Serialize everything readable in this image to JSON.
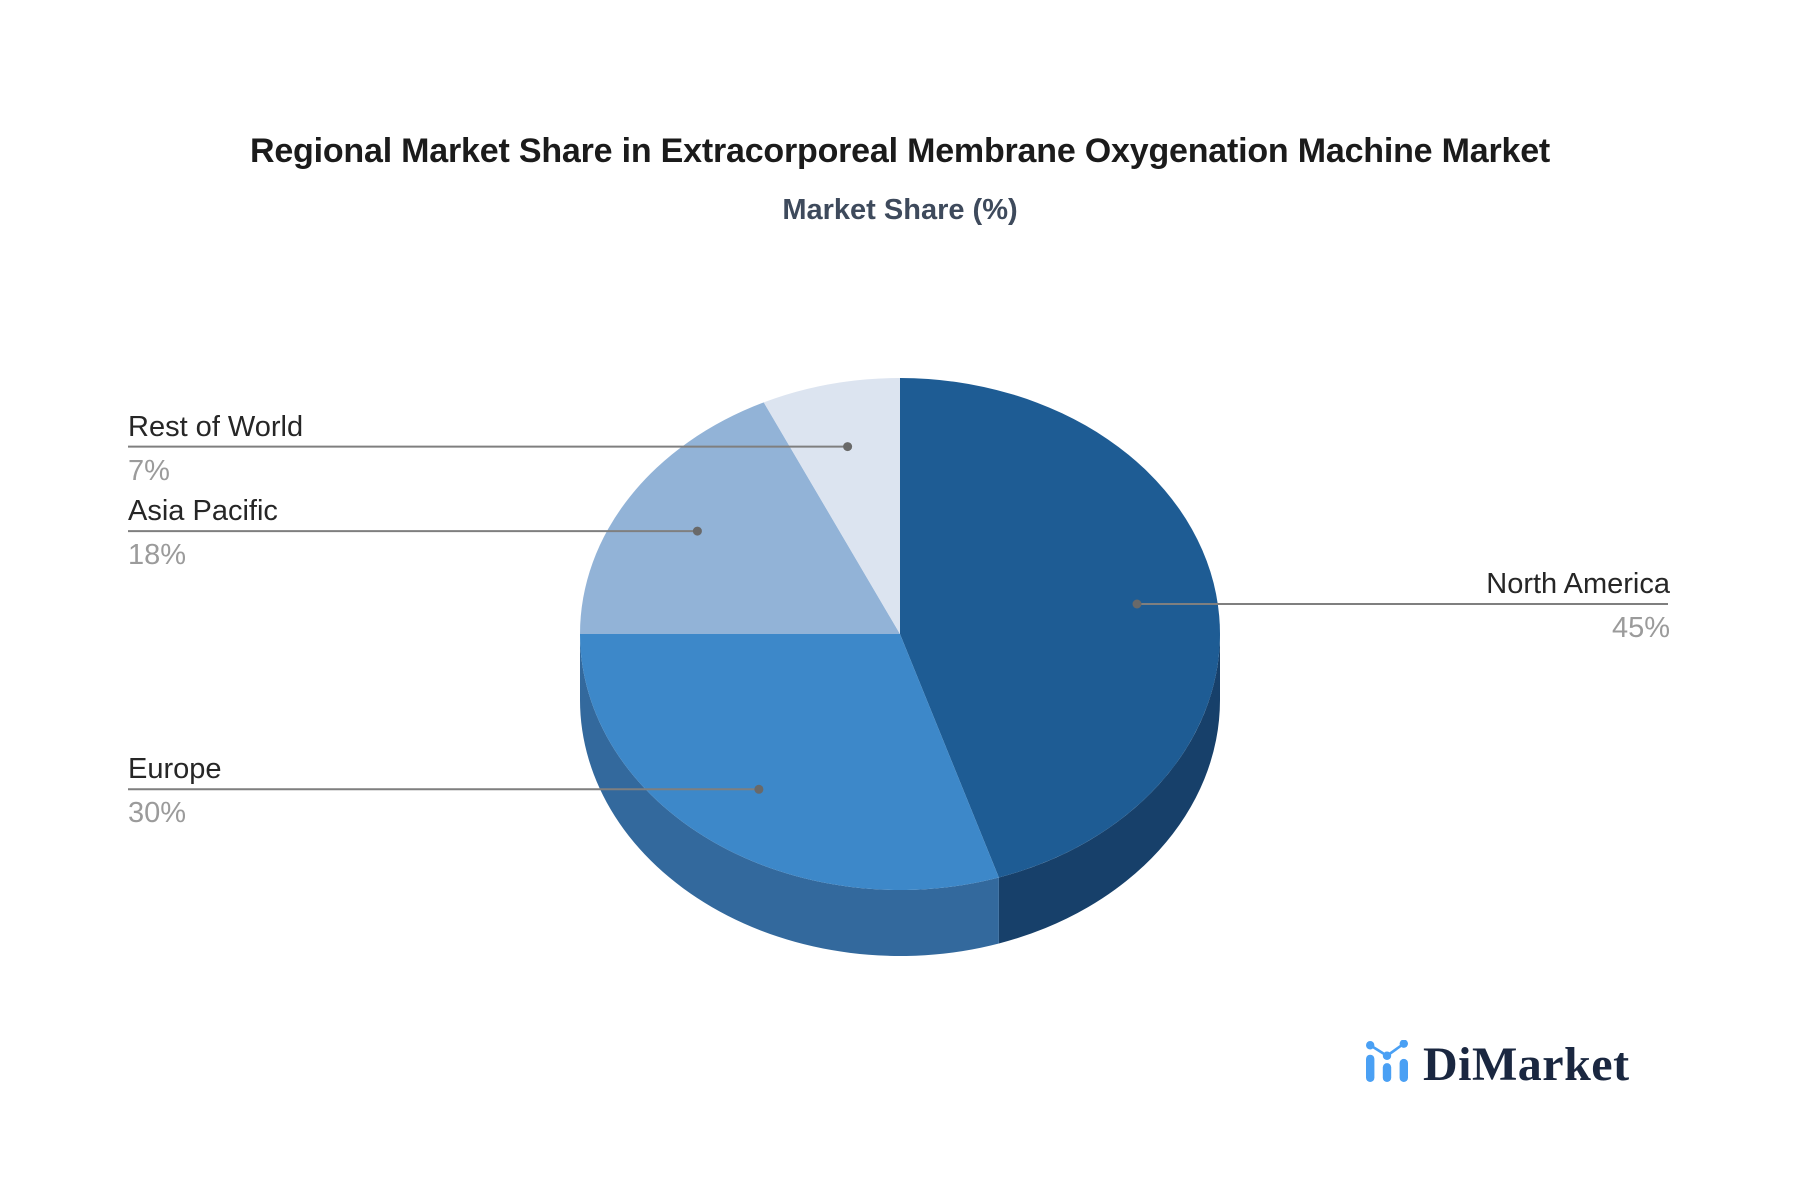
{
  "page": {
    "background": "#FFFFFF"
  },
  "header": {
    "title": "Regional Market Share in Extracorporeal Membrane Oxygenation Machine Market",
    "title_color": "#1B1B1B",
    "subtitle": "Market Share (%)",
    "subtitle_color": "#3E4A5C"
  },
  "chart_data": {
    "type": "pie",
    "style": "3d",
    "title": "Regional Market Share in Extracorporeal Membrane Oxygenation Machine Market",
    "subtitle": "Market Share (%)",
    "unit": "%",
    "direction": "clockwise",
    "start_angle_deg": 0,
    "legend_position": "callout-labels",
    "series": [
      {
        "label": "North America",
        "value": 45,
        "display_value": "45%",
        "color": "#1E5C94",
        "side_color": "#17406A",
        "callout_side": "right"
      },
      {
        "label": "Europe",
        "value": 30,
        "display_value": "30%",
        "color": "#3D88C9",
        "side_color": "#33699D",
        "callout_side": "left"
      },
      {
        "label": "Asia Pacific",
        "value": 18,
        "display_value": "18%",
        "color": "#92B3D7",
        "side_color": "#7E9FC4",
        "callout_side": "left"
      },
      {
        "label": "Rest of World",
        "value": 7,
        "display_value": "7%",
        "color": "#DCE4F0",
        "side_color": "#C2CCDC",
        "callout_side": "left"
      }
    ]
  },
  "callout_style": {
    "line_color": "#7F7F7F",
    "dot_color": "#696969",
    "label_color": "#262626",
    "value_color": "#9B9B9B"
  },
  "logo": {
    "text": "DiMarket",
    "icon": "mini-bar-line-chart-icon",
    "text_color": "#1A2740",
    "icon_color": "#4AA0F4"
  }
}
